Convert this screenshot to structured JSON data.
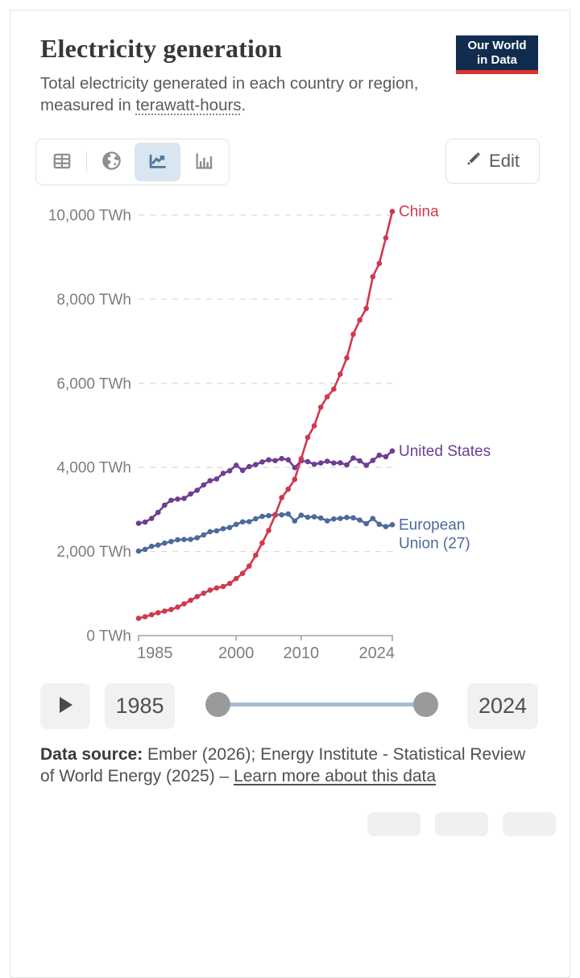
{
  "header": {
    "title": "Electricity generation",
    "subtitle_prefix": "Total electricity generated in each country or region, measured in ",
    "subtitle_link": "terawatt-hours",
    "subtitle_suffix": ".",
    "logo": {
      "line1": "Our World",
      "line2": "in Data"
    }
  },
  "toolbar": {
    "active_tab": "line-chart",
    "tabs": [
      "table",
      "map",
      "line-chart",
      "bar-chart"
    ],
    "edit_label": "Edit"
  },
  "chart_data": {
    "type": "line",
    "title": "Electricity generation",
    "ylabel": "terawatt-hours (TWh)",
    "grid": true,
    "legend_position": "right-of-line-ends",
    "x_range": [
      1985,
      2024
    ],
    "ylim": [
      0,
      10000
    ],
    "y_ticks": [
      {
        "value": 0,
        "label": "0 TWh"
      },
      {
        "value": 2000,
        "label": "2,000 TWh"
      },
      {
        "value": 4000,
        "label": "4,000 TWh"
      },
      {
        "value": 6000,
        "label": "6,000 TWh"
      },
      {
        "value": 8000,
        "label": "8,000 TWh"
      },
      {
        "value": 10000,
        "label": "10,000 TWh"
      }
    ],
    "x_ticks": [
      {
        "year": 1985,
        "label": "1985"
      },
      {
        "year": 2000,
        "label": "2000"
      },
      {
        "year": 2010,
        "label": "2010"
      },
      {
        "year": 2024,
        "label": "2024"
      }
    ],
    "series": [
      {
        "name": "United States",
        "color": "#6d3e91",
        "label_lines": [
          "United States"
        ],
        "values": [
          2670,
          2700,
          2787,
          2930,
          3101,
          3218,
          3247,
          3263,
          3368,
          3456,
          3584,
          3684,
          3727,
          3858,
          3920,
          4052,
          3930,
          4020,
          4067,
          4131,
          4180,
          4160,
          4210,
          4180,
          3996,
          4157,
          4138,
          4075,
          4105,
          4145,
          4105,
          4110,
          4060,
          4222,
          4158,
          4050,
          4165,
          4290,
          4254,
          4390
        ]
      },
      {
        "name": "European Union (27)",
        "color": "#4c6a9c",
        "label_lines": [
          "European",
          "Union (27)"
        ],
        "values": [
          2009,
          2052,
          2122,
          2154,
          2199,
          2237,
          2280,
          2285,
          2287,
          2326,
          2394,
          2473,
          2493,
          2543,
          2570,
          2645,
          2705,
          2711,
          2780,
          2835,
          2852,
          2877,
          2874,
          2893,
          2727,
          2864,
          2817,
          2825,
          2795,
          2730,
          2773,
          2786,
          2810,
          2800,
          2749,
          2662,
          2785,
          2648,
          2591,
          2638
        ]
      },
      {
        "name": "China",
        "color": "#d0384e",
        "label_lines": [
          "China"
        ],
        "values": [
          411,
          450,
          497,
          545,
          585,
          621,
          678,
          754,
          839,
          928,
          1008,
          1081,
          1135,
          1166,
          1239,
          1356,
          1481,
          1654,
          1911,
          2203,
          2500,
          2866,
          3282,
          3482,
          3715,
          4207,
          4713,
          4988,
          5432,
          5680,
          5860,
          6218,
          6604,
          7166,
          7504,
          7779,
          8534,
          8849,
          9456,
          10087
        ]
      }
    ]
  },
  "timeline": {
    "start_year": "1985",
    "end_year": "2024"
  },
  "footer": {
    "label": "Data source:",
    "text": " Ember (2026); Energy Institute - Statistical Review of World Energy (2025) – ",
    "link": "Learn more about this data"
  }
}
